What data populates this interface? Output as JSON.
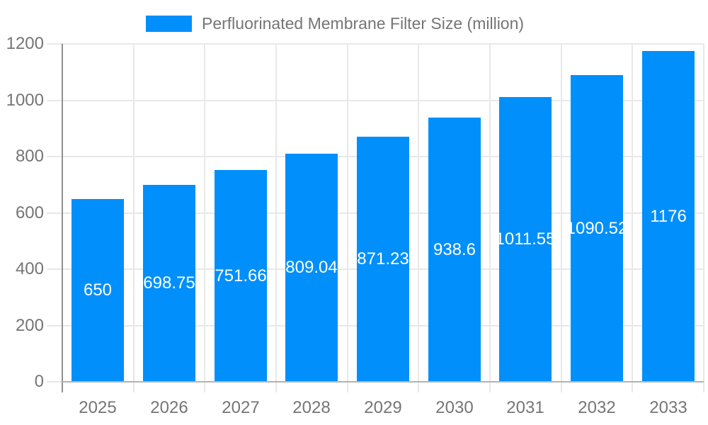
{
  "chart_data": {
    "type": "bar",
    "title": "Perfluorinated Membrane Filter Size (million)",
    "legend": {
      "label": "Perfluorinated Membrane Filter Size (million)",
      "position": "top"
    },
    "categories": [
      "2025",
      "2026",
      "2027",
      "2028",
      "2029",
      "2030",
      "2031",
      "2032",
      "2033"
    ],
    "series": [
      {
        "name": "Perfluorinated Membrane Filter Size (million)",
        "values": [
          650,
          698.75,
          751.66,
          809.04,
          871.23,
          938.6,
          1011.55,
          1090.52,
          1176
        ],
        "value_labels": [
          "650",
          "698.75",
          "751.66",
          "809.04",
          "871.23",
          "938.6",
          "1011.55",
          "1090.52",
          "1176"
        ]
      }
    ],
    "xlabel": "",
    "ylabel": "",
    "ylim": [
      0,
      1200
    ],
    "yticks": [
      0,
      200,
      400,
      600,
      800,
      1000,
      1200
    ],
    "ytick_labels": [
      "0",
      "200",
      "400",
      "600",
      "800",
      "1000",
      "1200"
    ],
    "grid": true,
    "colors": {
      "bar": "#008FFB",
      "axis_text": "#757575",
      "value_text": "#ffffff",
      "gridline": "#e8e8e8",
      "x_axis_line": "#b3b3b3",
      "y_axis_line": "#909090"
    }
  }
}
